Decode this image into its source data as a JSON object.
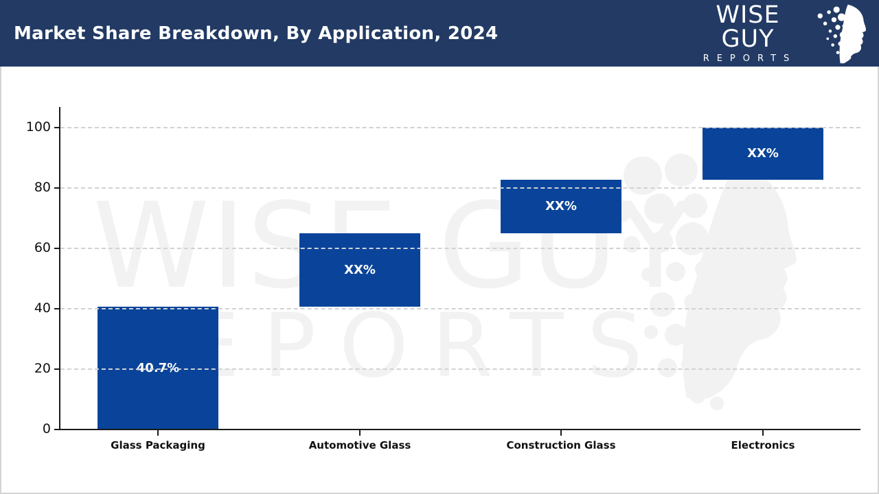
{
  "header": {
    "title": "Market Share Breakdown, By Application, 2024",
    "logo": {
      "line1": "WISE GUY",
      "line2": "REPORTS"
    }
  },
  "watermark": {
    "line1": "WISE GUY",
    "line2": "REPORTS"
  },
  "colors": {
    "header_bg": "#223A64",
    "bar": "#0A449A",
    "grid": "#CFD2D6",
    "axis": "#1A1A1A",
    "bar_label": "#FFFFFF",
    "watermark": "#F2F2F2"
  },
  "chart_data": {
    "type": "bar",
    "subtype": "waterfall",
    "title": "Market Share Breakdown, By Application, 2024",
    "categories": [
      "Glass Packaging",
      "Automotive Glass",
      "Construction Glass",
      "Electronics"
    ],
    "series": [
      {
        "name": "Market Share",
        "segments": [
          {
            "category": "Glass Packaging",
            "start": 0,
            "end": 40.7,
            "label": "40.7%"
          },
          {
            "category": "Automotive Glass",
            "start": 40.7,
            "end": 65.0,
            "label": "XX%"
          },
          {
            "category": "Construction Glass",
            "start": 65.0,
            "end": 82.8,
            "label": "XX%"
          },
          {
            "category": "Electronics",
            "start": 82.8,
            "end": 100.0,
            "label": "XX%"
          }
        ]
      }
    ],
    "ylim": [
      0,
      100
    ],
    "yticks": [
      0,
      20,
      40,
      60,
      80,
      100
    ],
    "xlabel": "",
    "ylabel": "",
    "grid": "horizontal-dashed",
    "legend": "none"
  }
}
